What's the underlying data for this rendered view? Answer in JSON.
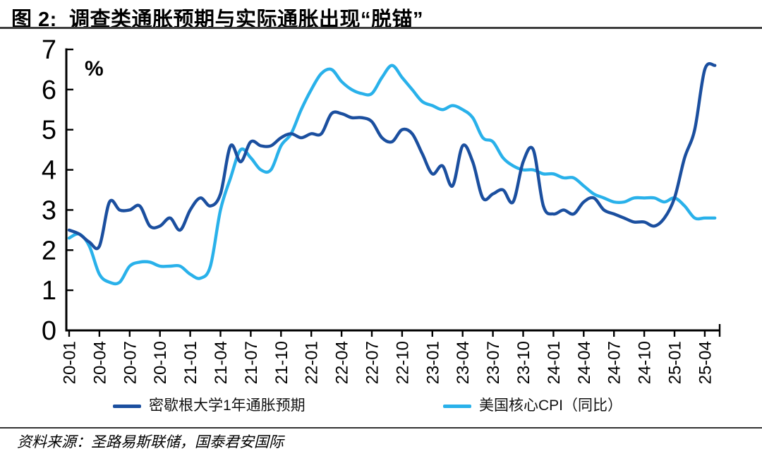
{
  "header": {
    "title": "图 2:  调查类通胀预期与实际通胀出现“脱锚”"
  },
  "chart_data": {
    "type": "line",
    "title": "调查类通胀预期与实际通胀出现“脱锚”",
    "unit_label": "%",
    "xlabel": "",
    "ylabel": "%",
    "ylim": [
      0,
      7
    ],
    "yticks": [
      0,
      1,
      2,
      3,
      4,
      5,
      6,
      7
    ],
    "grid": false,
    "legend_position": "bottom",
    "x_tick_labels": [
      "20-01",
      "20-04",
      "20-07",
      "20-10",
      "21-01",
      "21-04",
      "21-07",
      "21-10",
      "22-01",
      "22-04",
      "22-07",
      "22-10",
      "23-01",
      "23-04",
      "23-07",
      "23-10",
      "24-01",
      "24-04",
      "24-07",
      "24-10",
      "25-01",
      "25-04"
    ],
    "categories": [
      "2020-01",
      "2020-02",
      "2020-03",
      "2020-04",
      "2020-05",
      "2020-06",
      "2020-07",
      "2020-08",
      "2020-09",
      "2020-10",
      "2020-11",
      "2020-12",
      "2021-01",
      "2021-02",
      "2021-03",
      "2021-04",
      "2021-05",
      "2021-06",
      "2021-07",
      "2021-08",
      "2021-09",
      "2021-10",
      "2021-11",
      "2021-12",
      "2022-01",
      "2022-02",
      "2022-03",
      "2022-04",
      "2022-05",
      "2022-06",
      "2022-07",
      "2022-08",
      "2022-09",
      "2022-10",
      "2022-11",
      "2022-12",
      "2023-01",
      "2023-02",
      "2023-03",
      "2023-04",
      "2023-05",
      "2023-06",
      "2023-07",
      "2023-08",
      "2023-09",
      "2023-10",
      "2023-11",
      "2023-12",
      "2024-01",
      "2024-02",
      "2024-03",
      "2024-04",
      "2024-05",
      "2024-06",
      "2024-07",
      "2024-08",
      "2024-09",
      "2024-10",
      "2024-11",
      "2024-12",
      "2025-01",
      "2025-02",
      "2025-03",
      "2025-04",
      "2025-05"
    ],
    "series": [
      {
        "name": "密歇根大学1年通胀预期",
        "color": "#1b4f9f",
        "values": [
          2.5,
          2.4,
          2.2,
          2.1,
          3.2,
          3.0,
          3.0,
          3.1,
          2.6,
          2.6,
          2.8,
          2.5,
          3.0,
          3.3,
          3.1,
          3.4,
          4.6,
          4.2,
          4.7,
          4.6,
          4.6,
          4.8,
          4.9,
          4.8,
          4.9,
          4.9,
          5.4,
          5.4,
          5.3,
          5.3,
          5.2,
          4.8,
          4.7,
          5.0,
          4.9,
          4.4,
          3.9,
          4.1,
          3.6,
          4.6,
          4.2,
          3.3,
          3.4,
          3.5,
          3.2,
          4.2,
          4.5,
          3.1,
          2.9,
          3.0,
          2.9,
          3.2,
          3.3,
          3.0,
          2.9,
          2.8,
          2.7,
          2.7,
          2.6,
          2.8,
          3.3,
          4.3,
          5.0,
          6.5,
          6.6
        ]
      },
      {
        "name": "美国核心CPI（同比）",
        "color": "#29b1ea",
        "values": [
          2.3,
          2.4,
          2.1,
          1.4,
          1.2,
          1.2,
          1.6,
          1.7,
          1.7,
          1.6,
          1.6,
          1.6,
          1.4,
          1.3,
          1.6,
          3.0,
          3.8,
          4.5,
          4.3,
          4.0,
          4.0,
          4.6,
          4.9,
          5.5,
          6.0,
          6.4,
          6.5,
          6.2,
          6.0,
          5.9,
          5.9,
          6.3,
          6.6,
          6.3,
          6.0,
          5.7,
          5.6,
          5.5,
          5.6,
          5.5,
          5.3,
          4.8,
          4.7,
          4.3,
          4.1,
          4.0,
          4.0,
          3.9,
          3.9,
          3.8,
          3.8,
          3.6,
          3.4,
          3.3,
          3.2,
          3.2,
          3.3,
          3.3,
          3.3,
          3.2,
          3.3,
          3.1,
          2.8,
          2.8,
          2.8
        ]
      }
    ]
  },
  "footer": {
    "source": "资料来源：圣路易斯联储，国泰君安国际"
  }
}
